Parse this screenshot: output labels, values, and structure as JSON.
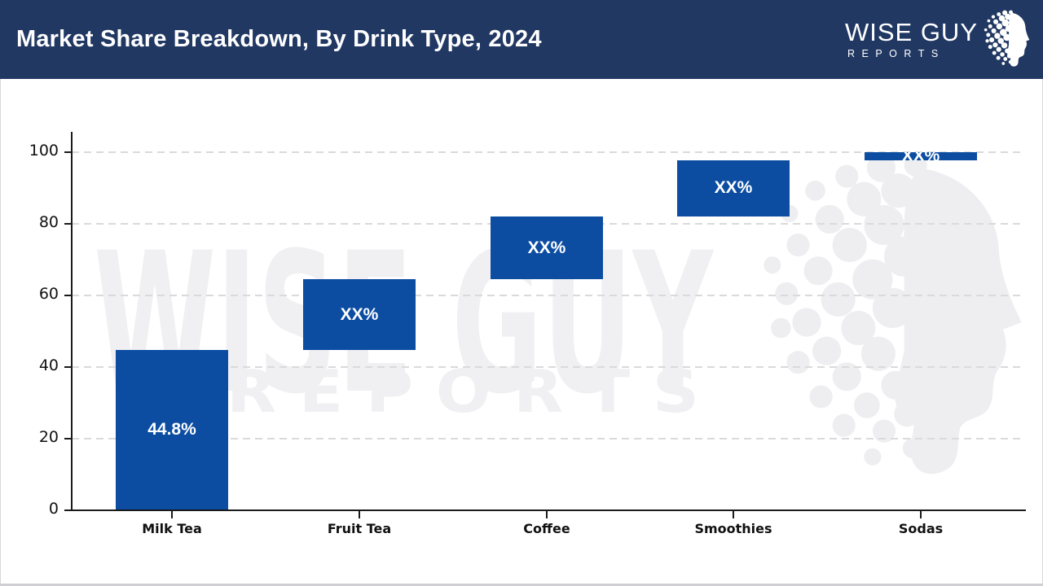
{
  "header": {
    "title": "Market Share Breakdown, By Drink Type, 2024",
    "logo": {
      "line1": "WISE GUY",
      "line2": "REPORTS"
    }
  },
  "watermark": {
    "line1": "WISE GUY",
    "line2": "R E P O R T S"
  },
  "colors": {
    "header_navy": "#213863",
    "bar_blue": "#0C4DA2",
    "grid_gray": "#DADADA",
    "axis_black": "#1A1A1A",
    "watermark_gray": "#F0F0F3",
    "bar_label_white": "#FFFFFF"
  },
  "chart_data": {
    "type": "bar",
    "subtype": "waterfall",
    "title": "Market Share Breakdown, By Drink Type, 2024",
    "xlabel": "",
    "ylabel": "",
    "categories": [
      "Milk Tea",
      "Fruit Tea",
      "Coffee",
      "Smoothies",
      "Sodas"
    ],
    "values": [
      44.8,
      19.7,
      17.5,
      15.8,
      2.2
    ],
    "segments": [
      {
        "category": "Milk Tea",
        "start": 0,
        "end": 44.8,
        "label": "44.8%"
      },
      {
        "category": "Fruit Tea",
        "start": 44.8,
        "end": 64.5,
        "label": "XX%"
      },
      {
        "category": "Coffee",
        "start": 64.5,
        "end": 82.0,
        "label": "XX%"
      },
      {
        "category": "Smoothies",
        "start": 82.0,
        "end": 97.8,
        "label": "XX%"
      },
      {
        "category": "Sodas",
        "start": 97.8,
        "end": 100,
        "label": "XX%"
      }
    ],
    "data_labels": [
      "44.8%",
      "XX%",
      "XX%",
      "XX%",
      "XX%"
    ],
    "y_ticks": [
      0,
      20,
      40,
      60,
      80,
      100
    ],
    "ylim": [
      0,
      104
    ],
    "grid": "horizontal-dashed",
    "legend": "none",
    "bar_color": "#0C4DA2"
  }
}
